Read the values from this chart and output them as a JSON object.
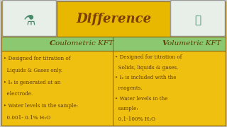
{
  "title": "Difference",
  "title_bg": "#E8B800",
  "title_color": "#7B3F00",
  "header_bg": "#8CC870",
  "header_color": "#5C3A00",
  "body_bg": "#F0C010",
  "body_color": "#5C3A00",
  "border_color": "#8B6914",
  "outer_bg": "#C8C8C8",
  "img_box_bg": "#E8E8E8",
  "col1_lines": [
    [
      "‣ Designed for titration of",
      false
    ],
    [
      "  Liquids & Gases only.",
      false
    ],
    [
      "‣ I₂ is generated at an",
      false
    ],
    [
      "  electrode.",
      false
    ],
    [
      "‣ Water levels in the sample:",
      false
    ],
    [
      "  0.001- 0.1% H₂O",
      false
    ]
  ],
  "col2_lines": [
    [
      "‣ Designed for titration of",
      false
    ],
    [
      "  Solids, liquids & gases.",
      false
    ],
    [
      "‣ I₂ is included with the",
      false
    ],
    [
      "  reagents.",
      false
    ],
    [
      "‣ Water levels in the",
      false
    ],
    [
      "  sample:",
      false
    ],
    [
      "  0.1-100% H₂O",
      false
    ]
  ],
  "fig_width": 3.2,
  "fig_height": 1.8,
  "dpi": 100
}
